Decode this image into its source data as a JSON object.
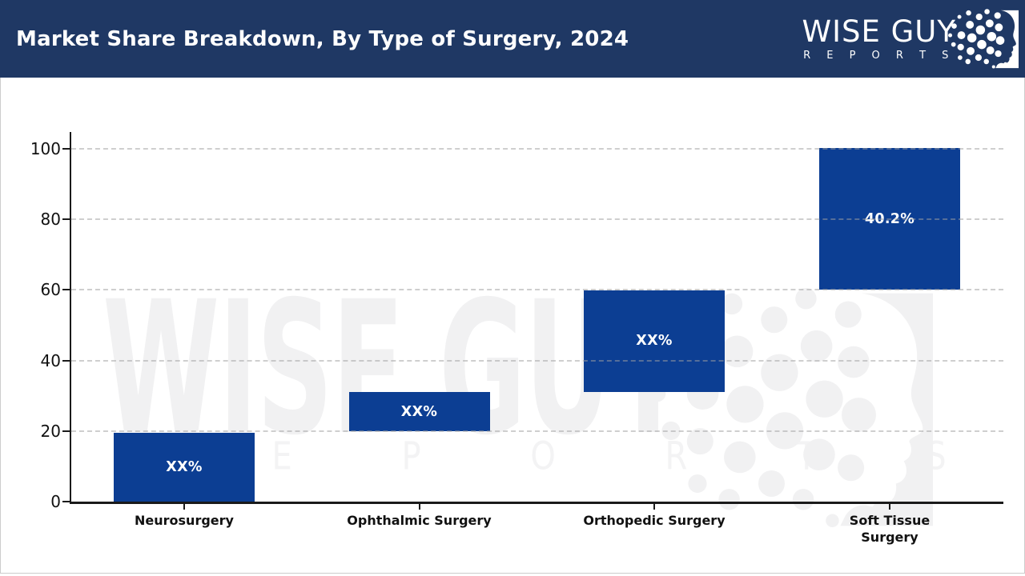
{
  "header": {
    "title": "Market Share Breakdown, By Type of Surgery, 2024",
    "logo": {
      "name": "WISE GUY",
      "subtitle": "R E P O R T S"
    }
  },
  "watermark": {
    "name": "WISE GUY",
    "subtitle": "R E P O R T S"
  },
  "colors": {
    "header_bg": "#1f3864",
    "bar": "#0c3e93",
    "bar_label_text": "#ffffff",
    "axis": "#1a1a1a",
    "gridline": "#a0a0a0",
    "watermark": "#f1f1f2"
  },
  "chart_data": {
    "type": "bar",
    "subtype": "floating-waterfall-bars",
    "title": "Market Share Breakdown, By Type of Surgery, 2024",
    "unit": "%",
    "categories": [
      "Neurosurgery",
      "Ophthalmic Surgery",
      "Orthopedic Surgery",
      "Soft Tissue Surgery"
    ],
    "segments": [
      {
        "category": "Neurosurgery",
        "start": 0,
        "end": 19.5,
        "label": "XX%"
      },
      {
        "category": "Ophthalmic Surgery",
        "start": 19.9,
        "end": 31.1,
        "label": "XX%"
      },
      {
        "category": "Orthopedic Surgery",
        "start": 31.1,
        "end": 59.9,
        "label": "XX%"
      },
      {
        "category": "Soft Tissue Surgery",
        "start": 60.0,
        "end": 100.2,
        "label": "40.2%"
      }
    ],
    "yticks": [
      0,
      20,
      40,
      60,
      80,
      100
    ],
    "ylim": [
      0,
      104.8
    ],
    "grid": "horizontal-dashed",
    "legend": "none"
  }
}
